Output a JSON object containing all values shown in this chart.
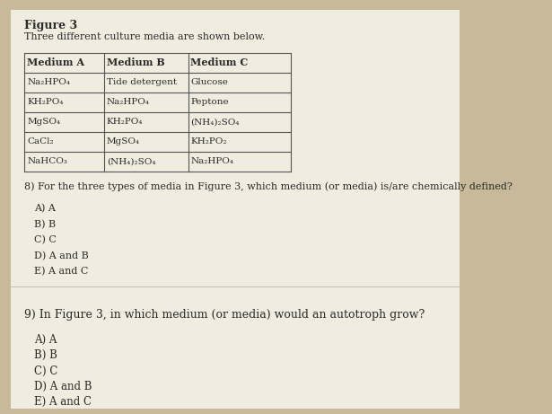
{
  "bg_color": "#c8b99a",
  "paper_color": "#f0ece0",
  "figure_title": "Figure 3",
  "figure_subtitle": "Three different culture media are shown below.",
  "table_headers": [
    "Medium A",
    "Medium B",
    "Medium C"
  ],
  "medium_a": [
    "Na₂HPO₄",
    "KH₂PO₄",
    "MgSO₄",
    "CaCl₂",
    "NaHCO₃"
  ],
  "medium_b": [
    "Tide detergent",
    "Na₂HPO₄",
    "KH₂PO₄",
    "MgSO₄",
    "(NH₄)₂SO₄"
  ],
  "medium_c": [
    "Glucose",
    "Peptone",
    "(NH₄)₂SO₄",
    "KH₂PO₂",
    "Na₂HPO₄"
  ],
  "q8_text": "8) For the three types of media in Figure 3, which medium (or media) is/are chemically defined?",
  "q8_choices": [
    "A) A",
    "B) B",
    "C) C",
    "D) A and B",
    "E) A and C"
  ],
  "q9_text": "9) In Figure 3, in which medium (or media) would an autotroph grow?",
  "q9_choices": [
    "A) A",
    "B) B",
    "C) C",
    "D) A and B",
    "E) A and C"
  ],
  "text_color": "#2a2a2a",
  "table_border_color": "#555555",
  "font_size_title": 9,
  "font_size_body": 8,
  "font_size_q": 8.5
}
